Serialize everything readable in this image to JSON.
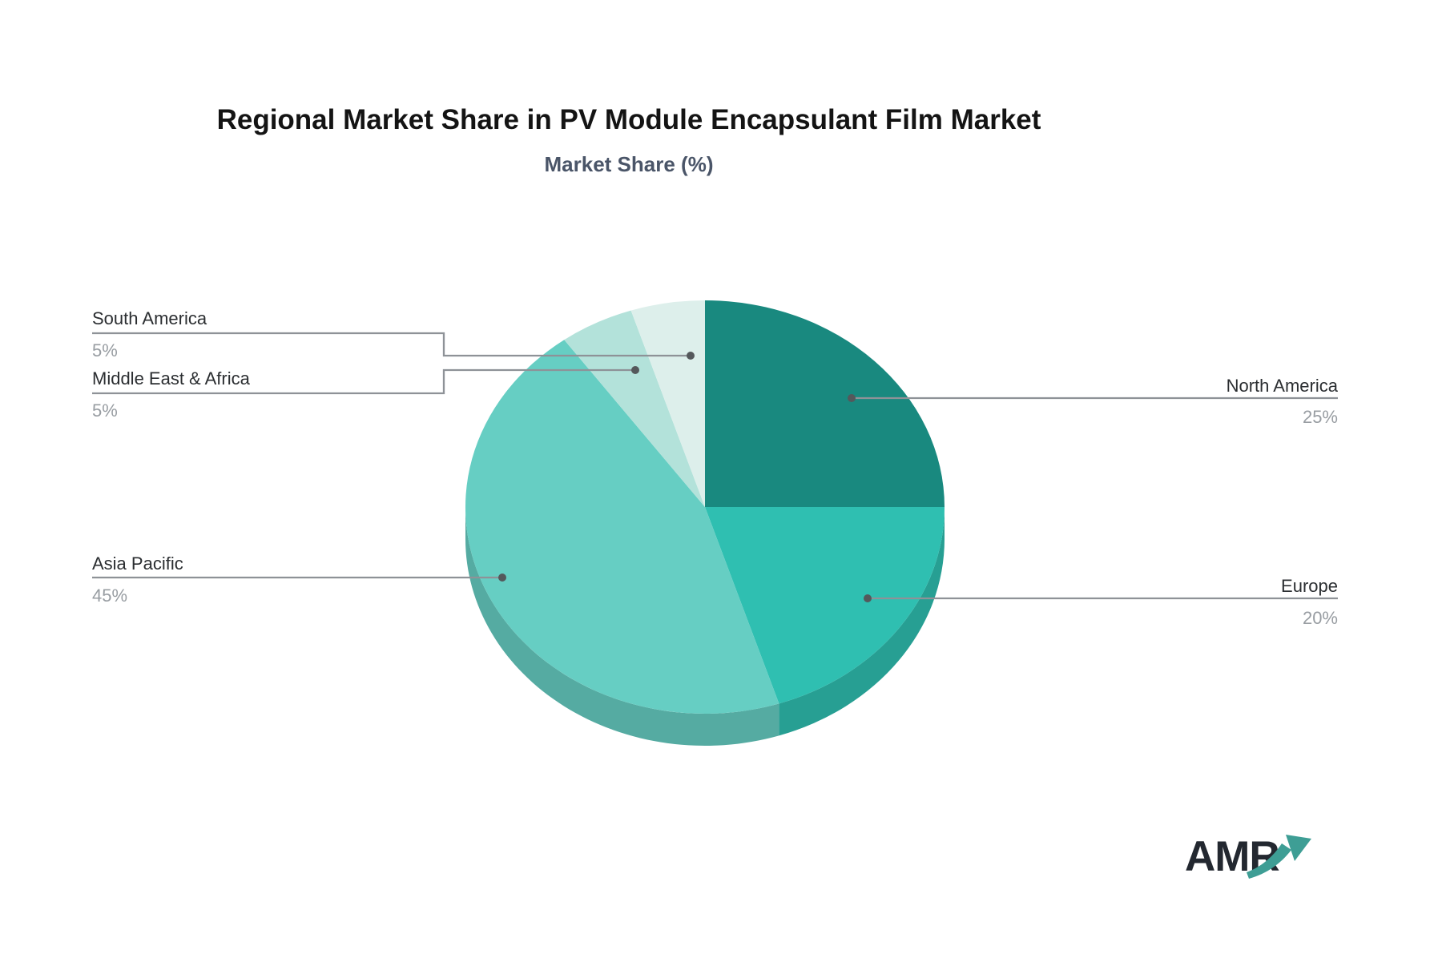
{
  "title": "Regional Market Share in PV Module Encapsulant Film Market",
  "subtitle": "Market Share (%)",
  "logo": {
    "text": "AMR",
    "arrow_color": "#3E9E95"
  },
  "chart_data": {
    "type": "pie",
    "title": "Regional Market Share in PV Module Encapsulant Film Market",
    "subtitle": "Market Share (%)",
    "unit": "%",
    "effect": "3d",
    "start_angle_deg": 0,
    "direction": "clockwise",
    "legend": "none",
    "slices": [
      {
        "label": "North America",
        "value": 25,
        "color": "#19897F",
        "callout_side": "right"
      },
      {
        "label": "Europe",
        "value": 20,
        "color": "#2FBFB1",
        "callout_side": "right"
      },
      {
        "label": "Asia Pacific",
        "value": 45,
        "color": "#66CEC3",
        "callout_side": "left"
      },
      {
        "label": "Middle East & Africa",
        "value": 5,
        "color": "#B3E2DA",
        "callout_side": "left"
      },
      {
        "label": "South America",
        "value": 5,
        "color": "#DDEFEB",
        "callout_side": "left"
      }
    ]
  }
}
